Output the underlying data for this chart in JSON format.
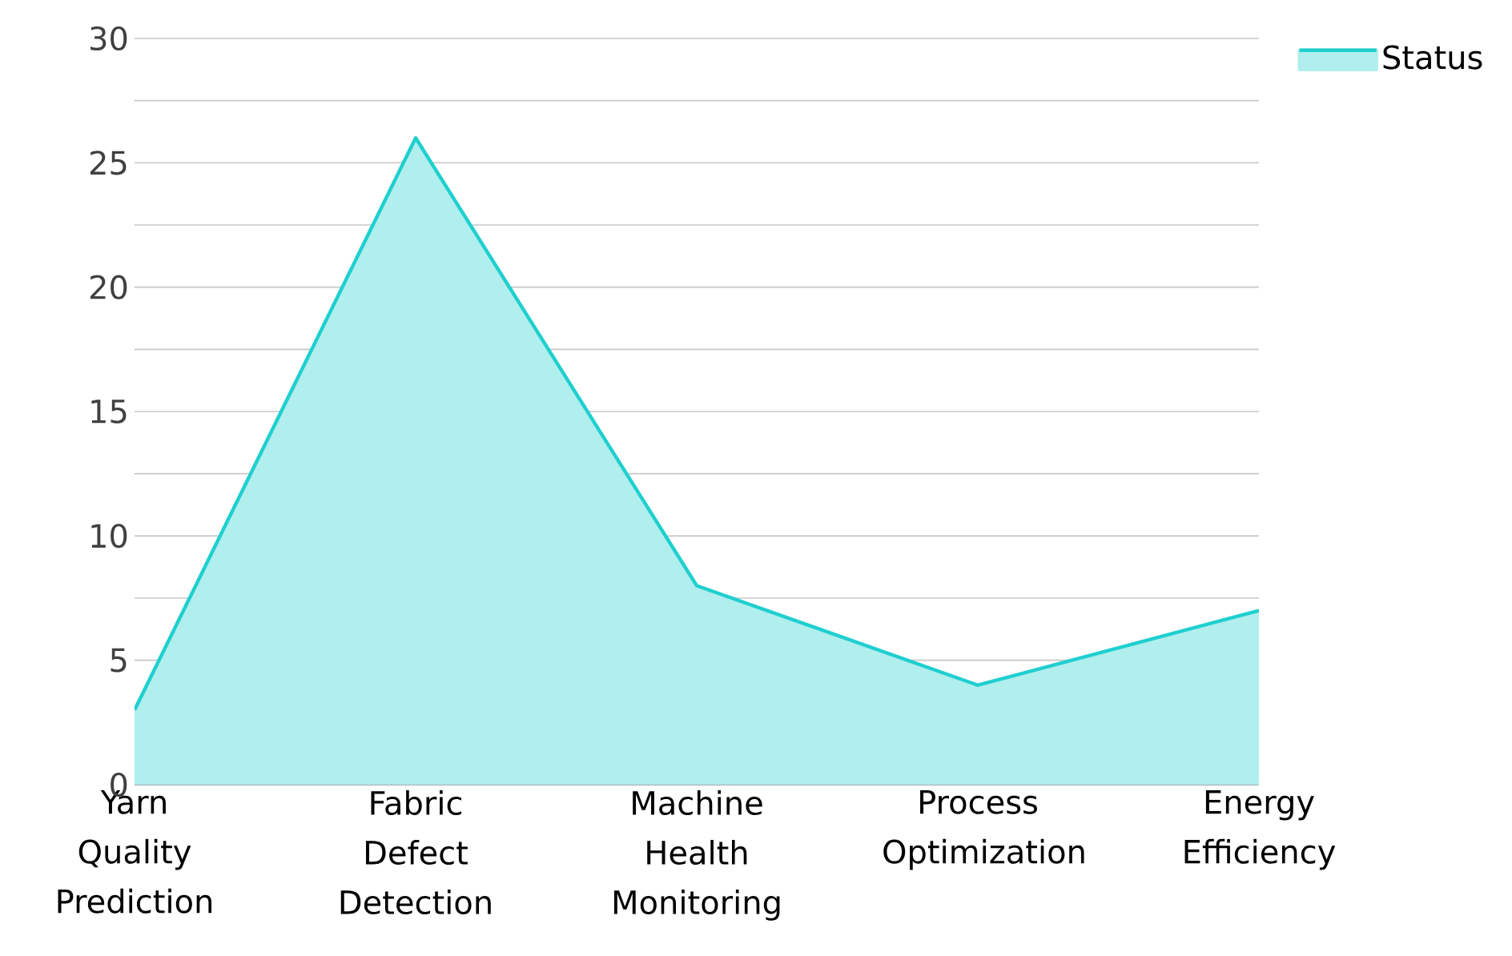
{
  "chart_data": {
    "type": "area",
    "categories": [
      "Yarn Quality Prediction",
      "Fabric Defect Detection",
      "Machine Health Monitoring",
      "Process Optimization",
      "Energy Efficiency"
    ],
    "series": [
      {
        "name": "Status",
        "color": "#1fcfcf",
        "values": [
          3,
          26,
          8,
          4,
          7
        ]
      }
    ],
    "ylim": [
      0,
      30
    ],
    "yticks": [
      0,
      {
        "value": 2.5,
        "label": null
      },
      5,
      {
        "value": 7.5,
        "label": null
      },
      10,
      {
        "value": 12.5,
        "label": null
      },
      15,
      {
        "value": 17.5,
        "label": null
      },
      20,
      {
        "value": 22.5,
        "label": null
      },
      25,
      {
        "value": 27.5,
        "label": null
      },
      30
    ],
    "grid": "y",
    "legend": "top right",
    "marker": "none"
  }
}
